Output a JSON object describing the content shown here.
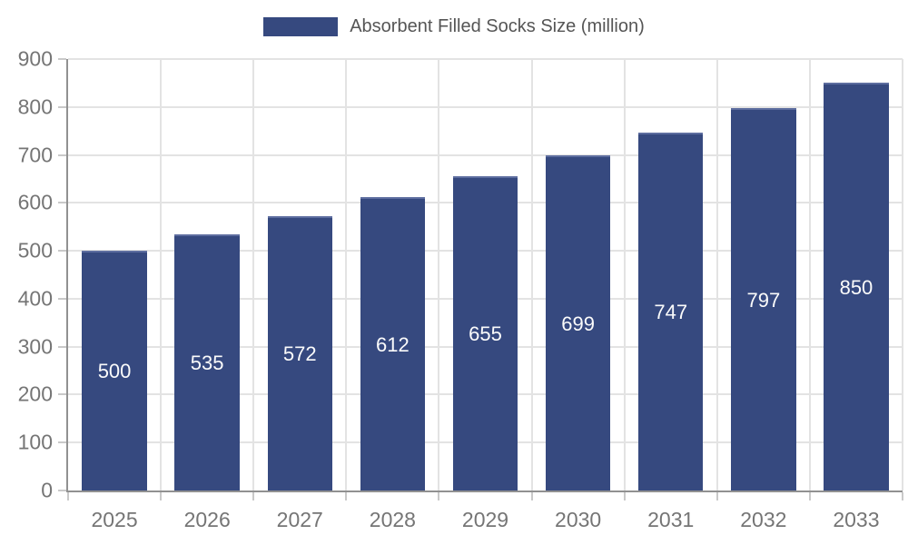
{
  "chart_data": {
    "type": "bar",
    "legend": "Absorbent Filled Socks Size (million)",
    "categories": [
      "2025",
      "2026",
      "2027",
      "2028",
      "2029",
      "2030",
      "2031",
      "2032",
      "2033"
    ],
    "values": [
      500,
      535,
      572,
      612,
      655,
      699,
      747,
      797,
      850
    ],
    "ylabel": "",
    "xlabel": "",
    "ylim": [
      0,
      900
    ],
    "ytick_step": 100,
    "grid": "both",
    "legend_position": "top-center",
    "bar_label_position": "inside-center",
    "colors": {
      "bar": "#36497f",
      "bar_top_edge": "#5d6d9f",
      "bar_label": "#fbfbfb",
      "axis": "#919191",
      "gridline": "#e3e3e3",
      "tick": "#c9c9c9",
      "axis_label": "#757575",
      "legend_text": "#555555",
      "background": "#ffffff"
    }
  }
}
